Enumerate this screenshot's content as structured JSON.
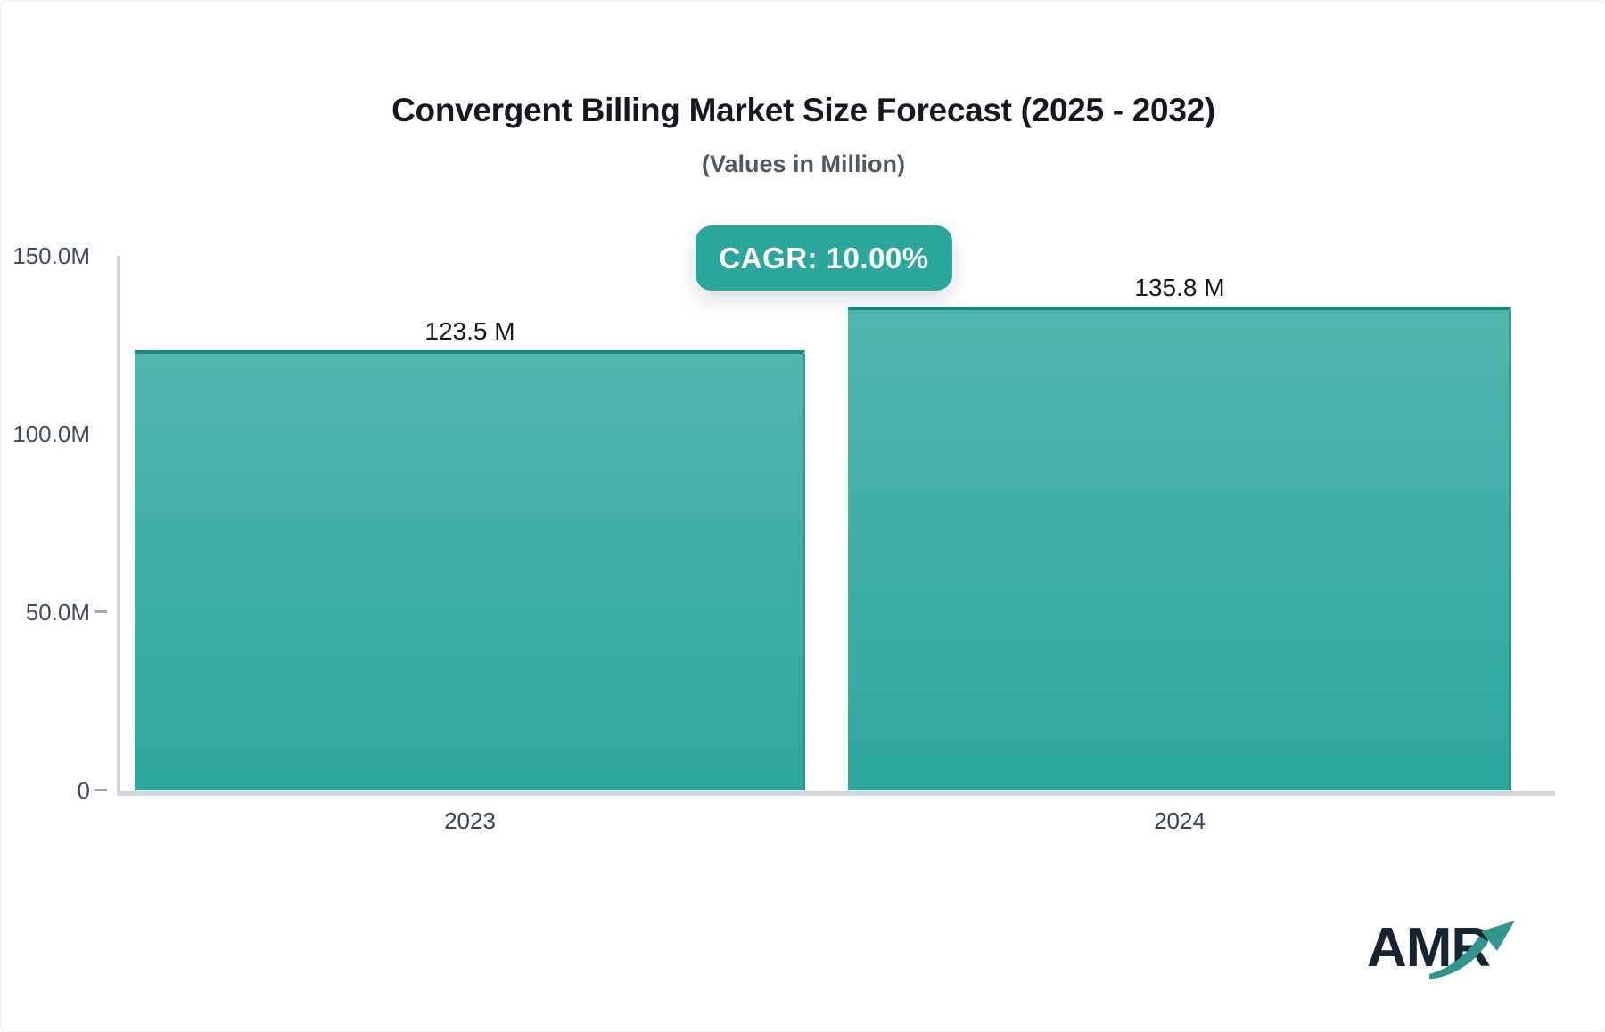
{
  "page": {
    "title": "Convergent Billing Market Size Forecast (2025 - 2032)",
    "subtitle": "(Values in Million)",
    "cagr_badge_label": "CAGR: 10.00%",
    "logo_text": "AMR"
  },
  "icons": {
    "logo_arrow_icon": "upward-trend-arrow"
  },
  "colors": {
    "badge_bg": "#2BA69B",
    "bar_gradient_top": "#52b5ae",
    "bar_gradient_bottom": "#2ba89b",
    "bar_top_border": "#17897e",
    "axis_line": "#d3d7db",
    "title_text": "#15181e",
    "subtitle_text": "#4d5866",
    "tick_label_text": "#414b5b",
    "value_label_text": "#14171c",
    "logo_text_color": "#152430",
    "logo_arrow_color": "#2f968c"
  },
  "chart_data": {
    "type": "bar",
    "title": "Convergent Billing Market Size Forecast (2025 - 2032)",
    "subtitle": "(Values in Million)",
    "unit": "Million",
    "cagr": "10.00%",
    "categories": [
      "2023",
      "2024"
    ],
    "values": [
      123.5,
      135.8
    ],
    "value_labels": [
      "123.5 M",
      "135.8 M"
    ],
    "ylim": [
      0,
      150
    ],
    "y_ticks": [
      {
        "value": 150,
        "label": "150.0M",
        "dash": false
      },
      {
        "value": 100,
        "label": "100.0M",
        "dash": false
      },
      {
        "value": 50,
        "label": "50.0M",
        "dash": true
      },
      {
        "value": 0,
        "label": "0",
        "dash": true
      }
    ],
    "grid": false,
    "legend": false
  }
}
